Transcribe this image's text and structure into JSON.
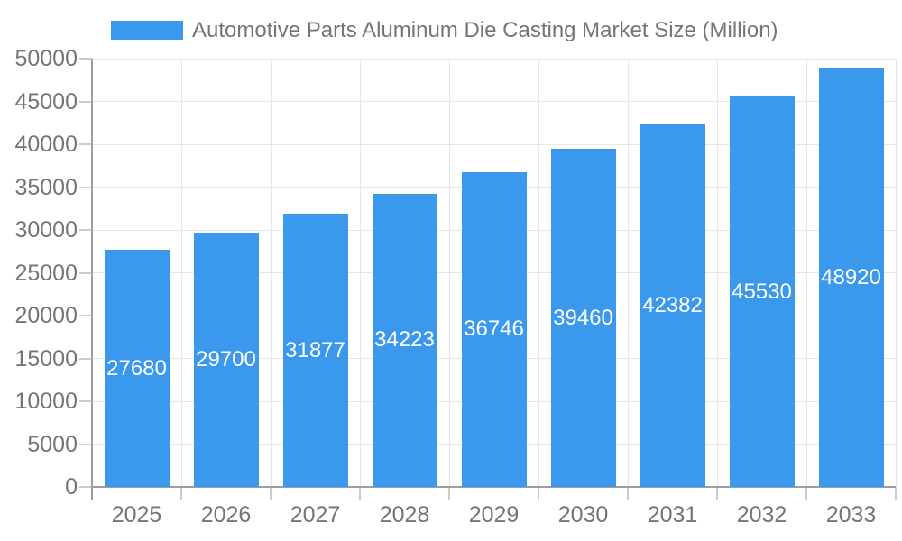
{
  "chart_data": {
    "type": "bar",
    "title": "Automotive Parts Aluminum Die Casting Market Size (Million)",
    "legend": [
      "Automotive Parts Aluminum Die Casting Market Size (Million)"
    ],
    "legend_position": "top",
    "categories": [
      "2025",
      "2026",
      "2027",
      "2028",
      "2029",
      "2030",
      "2031",
      "2032",
      "2033"
    ],
    "series": [
      {
        "name": "Automotive Parts Aluminum Die Casting Market Size (Million)",
        "values": [
          27680,
          29700,
          31877,
          34223,
          36746,
          39460,
          42382,
          45530,
          48920
        ]
      }
    ],
    "xlabel": "",
    "ylabel": "",
    "ylim": [
      0,
      50000
    ],
    "ytick_step": 5000,
    "yticks": [
      0,
      5000,
      10000,
      15000,
      20000,
      25000,
      30000,
      35000,
      40000,
      45000,
      50000
    ],
    "grid": true,
    "bar_labels_visible": true
  },
  "style": {
    "bar_color": "#3A99EC",
    "bar_label_color": "#FFFFFF",
    "axis_text_color": "#757575",
    "grid_color": "#E6E6E6",
    "axis_line_color": "#9E9E9E",
    "tick_color": "#CCCCCC",
    "background": "#FFFFFF"
  }
}
